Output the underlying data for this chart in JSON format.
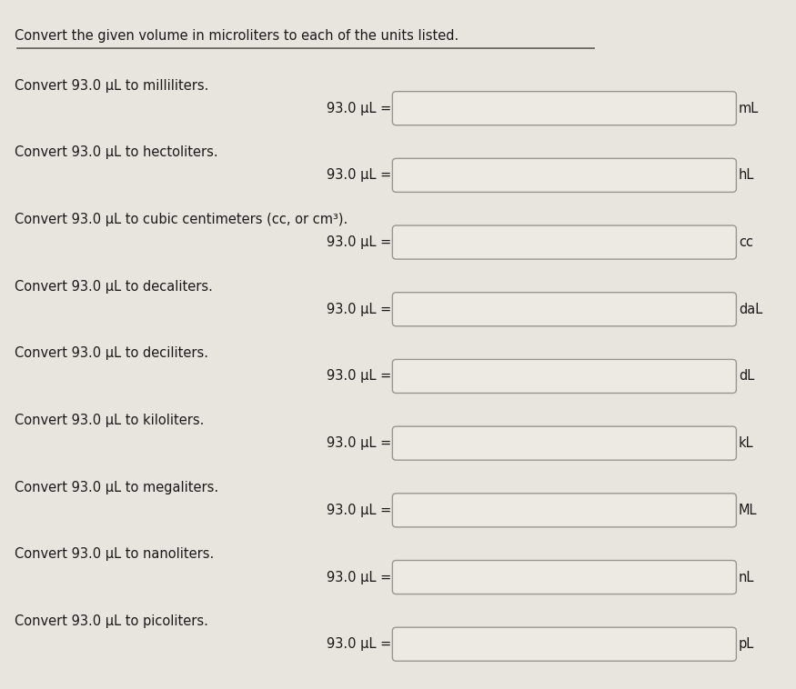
{
  "title": "Convert the given volume in microliters to each of the units listed.",
  "background_color": "#e8e4de",
  "rows": [
    {
      "label": "Convert 93.0 μL to milliliters.",
      "unit": "mL"
    },
    {
      "label": "Convert 93.0 μL to hectoliters.",
      "unit": "hL"
    },
    {
      "label": "Convert 93.0 μL to cubic centimeters (cc, or cm³).",
      "unit": "cc"
    },
    {
      "label": "Convert 93.0 μL to decaliters.",
      "unit": "daL"
    },
    {
      "label": "Convert 93.0 μL to deciliters.",
      "unit": "dL"
    },
    {
      "label": "Convert 93.0 μL to kiloliters.",
      "unit": "kL"
    },
    {
      "label": "Convert 93.0 μL to megaliters.",
      "unit": "ML"
    },
    {
      "label": "Convert 93.0 μL to nanoliters.",
      "unit": "nL"
    },
    {
      "label": "Convert 93.0 μL to picoliters.",
      "unit": "pL"
    }
  ],
  "equation_text": "93.0 μL =",
  "label_fontsize": 10.5,
  "eq_fontsize": 10.5,
  "unit_fontsize": 10.5,
  "title_fontsize": 10.5,
  "box_facecolor": "#ede9e3",
  "box_edgecolor": "#999590",
  "text_color": "#1a1a1a",
  "title_underline": true,
  "fig_width": 8.75,
  "fig_height": 7.58
}
